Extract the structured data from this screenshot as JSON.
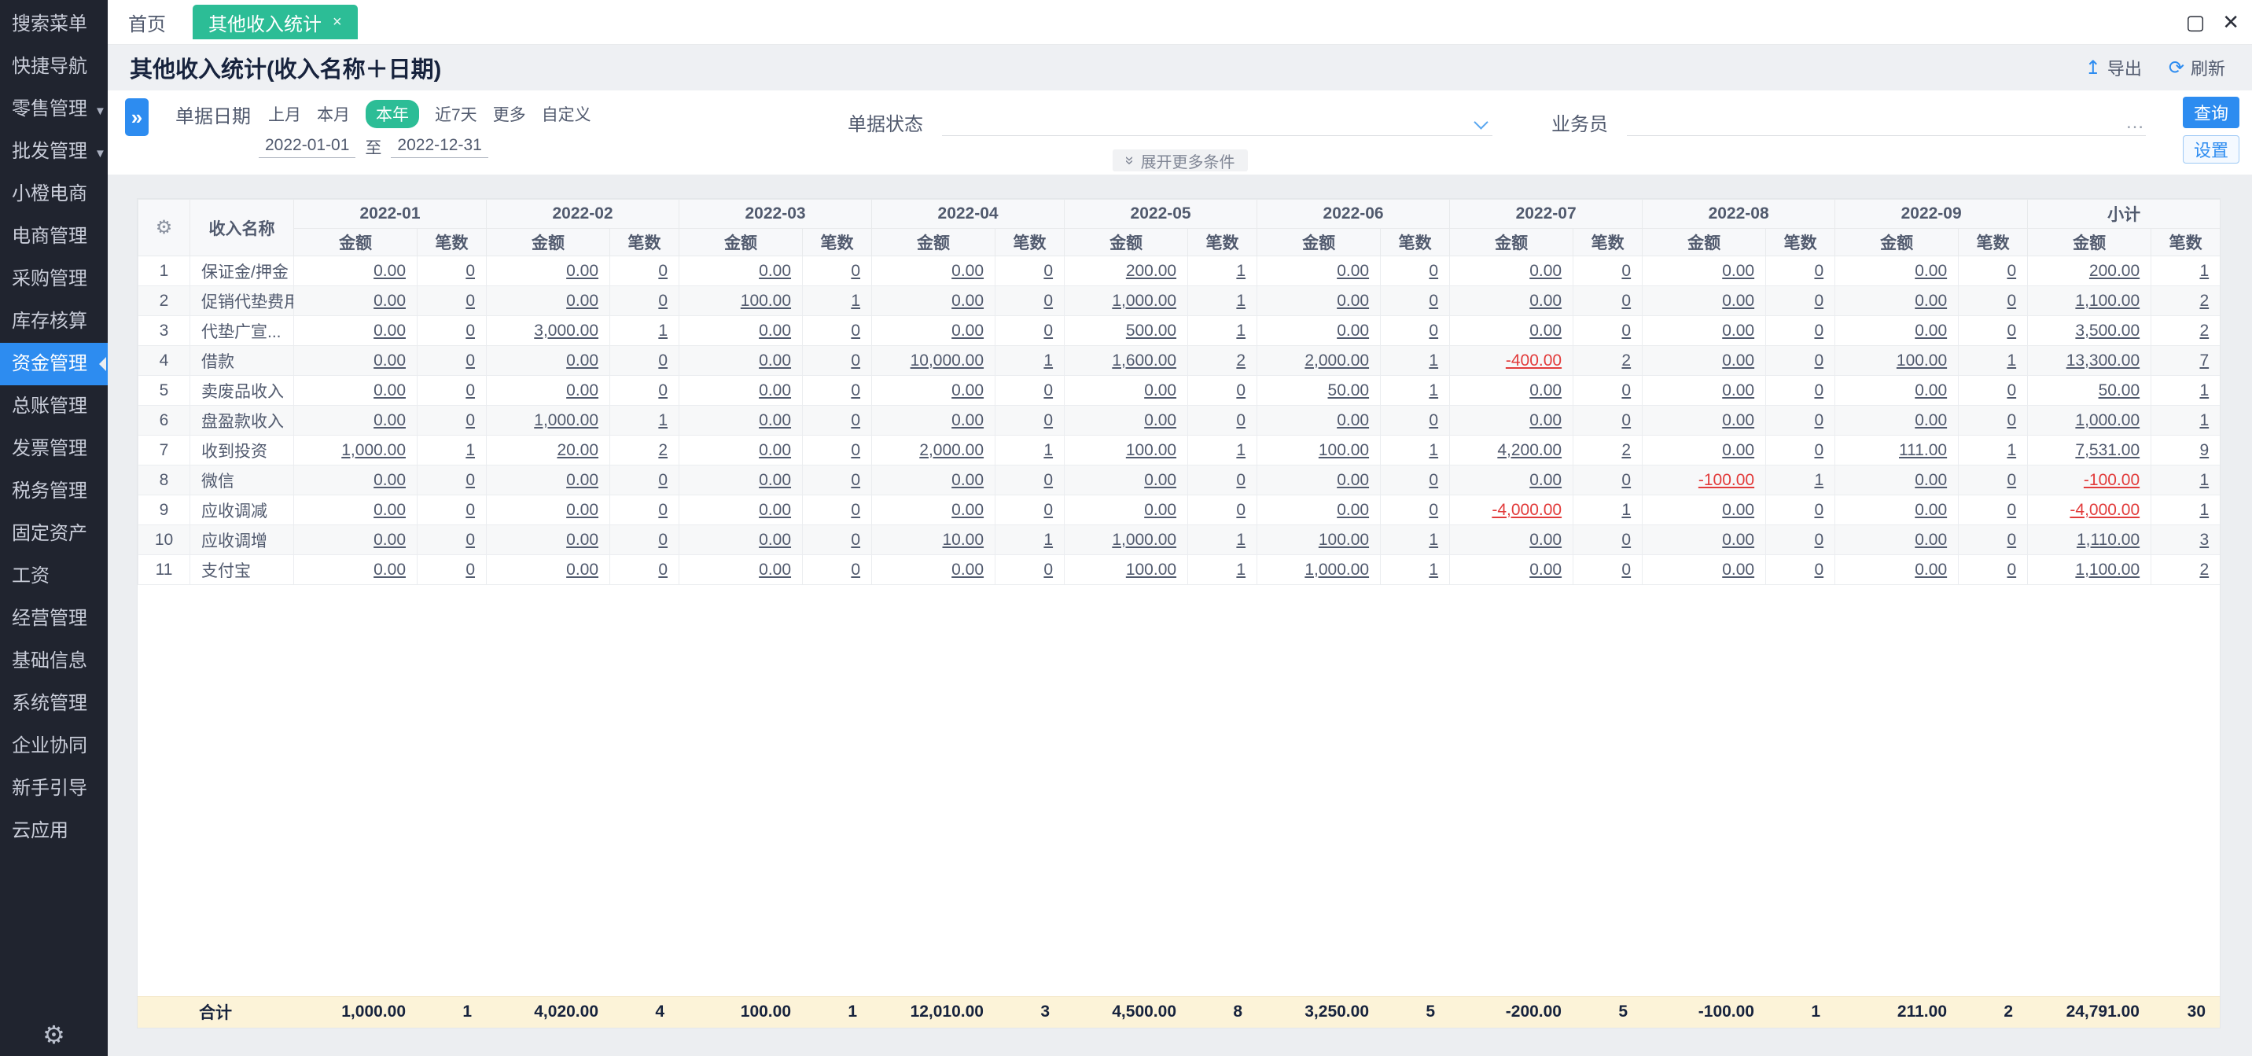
{
  "colors": {
    "accent": "#2d8cf0",
    "green": "#2cbd96",
    "negative": "#e23b3b",
    "summary_bg": "#fcf3d8",
    "sidebar_bg": "#20242f"
  },
  "icons": {
    "gear": "⚙",
    "collapse": "»",
    "close": "✕",
    "restore": "▢",
    "caret": "▼",
    "refresh": "⟳",
    "export": "↥",
    "double_chevron": "»",
    "ellipsis": "…"
  },
  "sidebar": {
    "items": [
      {
        "label": "搜索菜单"
      },
      {
        "label": "快捷导航"
      },
      {
        "label": "零售管理",
        "caret": true
      },
      {
        "label": "批发管理",
        "caret": true
      },
      {
        "label": "小橙电商"
      },
      {
        "label": "电商管理"
      },
      {
        "label": "采购管理"
      },
      {
        "label": "库存核算"
      },
      {
        "label": "资金管理",
        "selected": true
      },
      {
        "label": "总账管理"
      },
      {
        "label": "发票管理"
      },
      {
        "label": "税务管理"
      },
      {
        "label": "固定资产"
      },
      {
        "label": "工资"
      },
      {
        "label": "经营管理"
      },
      {
        "label": "基础信息"
      },
      {
        "label": "系统管理"
      },
      {
        "label": "企业协同"
      },
      {
        "label": "新手引导"
      },
      {
        "label": "云应用"
      }
    ]
  },
  "tabs": {
    "home": "首页",
    "active": "其他收入统计",
    "close": "×"
  },
  "page": {
    "title": "其他收入统计(收入名称＋日期)",
    "export": "导出",
    "refresh": "刷新"
  },
  "filters": {
    "date_label": "单据日期",
    "quick_options": [
      "上月",
      "本月",
      "本年",
      "近7天",
      "更多",
      "自定义"
    ],
    "selected_quick": "本年",
    "date_from": "2022-01-01",
    "date_sep": "至",
    "date_to": "2022-12-31",
    "status_label": "单据状态",
    "salesman_label": "业务员",
    "search_button": "查询",
    "settings_button": "设置",
    "expand_more": "展开更多条件"
  },
  "table": {
    "name_header": "收入名称",
    "amount_header": "金额",
    "count_header": "笔数",
    "months": [
      "2022-01",
      "2022-02",
      "2022-03",
      "2022-04",
      "2022-05",
      "2022-06",
      "2022-07",
      "2022-08",
      "2022-09",
      "小计"
    ],
    "rows": [
      {
        "name": "保证金/押金",
        "cells": [
          [
            "0.00",
            "0"
          ],
          [
            "0.00",
            "0"
          ],
          [
            "0.00",
            "0"
          ],
          [
            "0.00",
            "0"
          ],
          [
            "200.00",
            "1"
          ],
          [
            "0.00",
            "0"
          ],
          [
            "0.00",
            "0"
          ],
          [
            "0.00",
            "0"
          ],
          [
            "0.00",
            "0"
          ],
          [
            "200.00",
            "1"
          ]
        ]
      },
      {
        "name": "促销代垫费用",
        "cells": [
          [
            "0.00",
            "0"
          ],
          [
            "0.00",
            "0"
          ],
          [
            "100.00",
            "1"
          ],
          [
            "0.00",
            "0"
          ],
          [
            "1,000.00",
            "1"
          ],
          [
            "0.00",
            "0"
          ],
          [
            "0.00",
            "0"
          ],
          [
            "0.00",
            "0"
          ],
          [
            "0.00",
            "0"
          ],
          [
            "1,100.00",
            "2"
          ]
        ]
      },
      {
        "name": "代垫广宣...",
        "cells": [
          [
            "0.00",
            "0"
          ],
          [
            "3,000.00",
            "1"
          ],
          [
            "0.00",
            "0"
          ],
          [
            "0.00",
            "0"
          ],
          [
            "500.00",
            "1"
          ],
          [
            "0.00",
            "0"
          ],
          [
            "0.00",
            "0"
          ],
          [
            "0.00",
            "0"
          ],
          [
            "0.00",
            "0"
          ],
          [
            "3,500.00",
            "2"
          ]
        ]
      },
      {
        "name": "借款",
        "cells": [
          [
            "0.00",
            "0"
          ],
          [
            "0.00",
            "0"
          ],
          [
            "0.00",
            "0"
          ],
          [
            "10,000.00",
            "1"
          ],
          [
            "1,600.00",
            "2"
          ],
          [
            "2,000.00",
            "1"
          ],
          [
            "-400.00",
            "2"
          ],
          [
            "0.00",
            "0"
          ],
          [
            "100.00",
            "1"
          ],
          [
            "13,300.00",
            "7"
          ]
        ]
      },
      {
        "name": "卖废品收入",
        "cells": [
          [
            "0.00",
            "0"
          ],
          [
            "0.00",
            "0"
          ],
          [
            "0.00",
            "0"
          ],
          [
            "0.00",
            "0"
          ],
          [
            "0.00",
            "0"
          ],
          [
            "50.00",
            "1"
          ],
          [
            "0.00",
            "0"
          ],
          [
            "0.00",
            "0"
          ],
          [
            "0.00",
            "0"
          ],
          [
            "50.00",
            "1"
          ]
        ]
      },
      {
        "name": "盘盈款收入",
        "cells": [
          [
            "0.00",
            "0"
          ],
          [
            "1,000.00",
            "1"
          ],
          [
            "0.00",
            "0"
          ],
          [
            "0.00",
            "0"
          ],
          [
            "0.00",
            "0"
          ],
          [
            "0.00",
            "0"
          ],
          [
            "0.00",
            "0"
          ],
          [
            "0.00",
            "0"
          ],
          [
            "0.00",
            "0"
          ],
          [
            "1,000.00",
            "1"
          ]
        ]
      },
      {
        "name": "收到投资",
        "cells": [
          [
            "1,000.00",
            "1"
          ],
          [
            "20.00",
            "2"
          ],
          [
            "0.00",
            "0"
          ],
          [
            "2,000.00",
            "1"
          ],
          [
            "100.00",
            "1"
          ],
          [
            "100.00",
            "1"
          ],
          [
            "4,200.00",
            "2"
          ],
          [
            "0.00",
            "0"
          ],
          [
            "111.00",
            "1"
          ],
          [
            "7,531.00",
            "9"
          ]
        ]
      },
      {
        "name": "微信",
        "cells": [
          [
            "0.00",
            "0"
          ],
          [
            "0.00",
            "0"
          ],
          [
            "0.00",
            "0"
          ],
          [
            "0.00",
            "0"
          ],
          [
            "0.00",
            "0"
          ],
          [
            "0.00",
            "0"
          ],
          [
            "0.00",
            "0"
          ],
          [
            "-100.00",
            "1"
          ],
          [
            "0.00",
            "0"
          ],
          [
            "-100.00",
            "1"
          ]
        ]
      },
      {
        "name": "应收调减",
        "cells": [
          [
            "0.00",
            "0"
          ],
          [
            "0.00",
            "0"
          ],
          [
            "0.00",
            "0"
          ],
          [
            "0.00",
            "0"
          ],
          [
            "0.00",
            "0"
          ],
          [
            "0.00",
            "0"
          ],
          [
            "-4,000.00",
            "1"
          ],
          [
            "0.00",
            "0"
          ],
          [
            "0.00",
            "0"
          ],
          [
            "-4,000.00",
            "1"
          ]
        ]
      },
      {
        "name": "应收调增",
        "cells": [
          [
            "0.00",
            "0"
          ],
          [
            "0.00",
            "0"
          ],
          [
            "0.00",
            "0"
          ],
          [
            "10.00",
            "1"
          ],
          [
            "1,000.00",
            "1"
          ],
          [
            "100.00",
            "1"
          ],
          [
            "0.00",
            "0"
          ],
          [
            "0.00",
            "0"
          ],
          [
            "0.00",
            "0"
          ],
          [
            "1,110.00",
            "3"
          ]
        ]
      },
      {
        "name": "支付宝",
        "cells": [
          [
            "0.00",
            "0"
          ],
          [
            "0.00",
            "0"
          ],
          [
            "0.00",
            "0"
          ],
          [
            "0.00",
            "0"
          ],
          [
            "100.00",
            "1"
          ],
          [
            "1,000.00",
            "1"
          ],
          [
            "0.00",
            "0"
          ],
          [
            "0.00",
            "0"
          ],
          [
            "0.00",
            "0"
          ],
          [
            "1,100.00",
            "2"
          ]
        ]
      }
    ],
    "footer": {
      "label": "合计",
      "cells": [
        [
          "1,000.00",
          "1"
        ],
        [
          "4,020.00",
          "4"
        ],
        [
          "100.00",
          "1"
        ],
        [
          "12,010.00",
          "3"
        ],
        [
          "4,500.00",
          "8"
        ],
        [
          "3,250.00",
          "5"
        ],
        [
          "-200.00",
          "5"
        ],
        [
          "-100.00",
          "1"
        ],
        [
          "211.00",
          "2"
        ],
        [
          "24,791.00",
          "30"
        ]
      ]
    }
  }
}
